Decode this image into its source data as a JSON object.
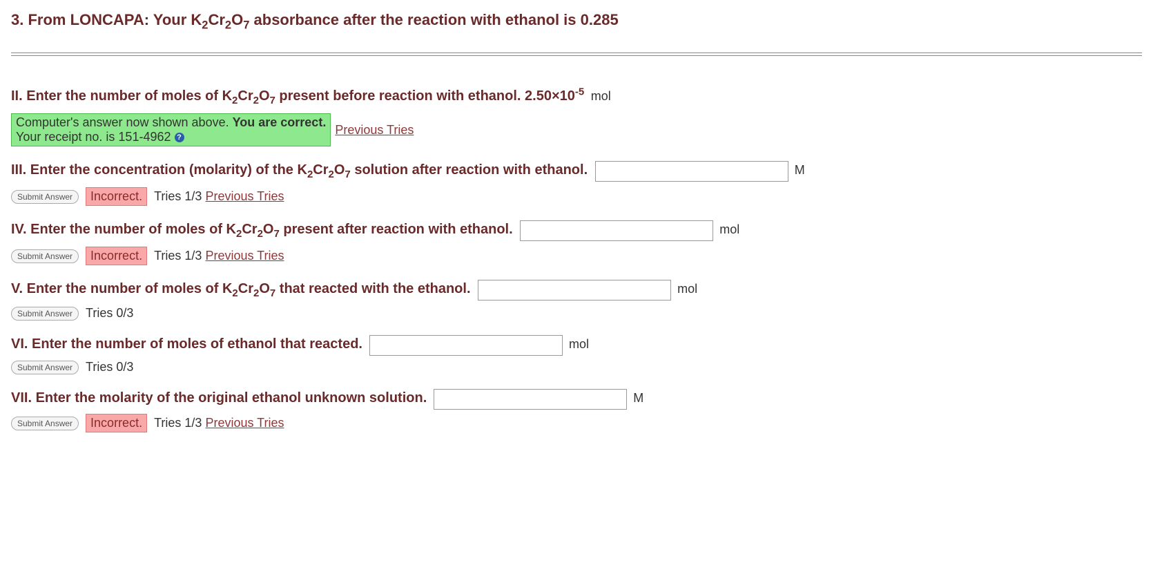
{
  "header": {
    "number": "3.",
    "prefix": "From LONCAPA: Your ",
    "compound_prefix": "K",
    "compound_sub1": "2",
    "compound_mid": "Cr",
    "compound_sub2": "2",
    "compound_mid2": "O",
    "compound_sub3": "7",
    "suffix": " absorbance after the reaction with ethanol is 0.285"
  },
  "q2": {
    "label_prefix": "II. Enter the number of moles of K",
    "label_suffix": " present before reaction with ethanol. ",
    "answer_value": "2.50×10",
    "answer_exp": "-5",
    "unit": "mol",
    "correct_line1": "Computer's answer now shown above. ",
    "correct_bold": "You are correct.",
    "correct_line2": "Your receipt no. is 151-4962 ",
    "prev_tries": "Previous Tries"
  },
  "q3": {
    "label_prefix": "III. Enter the concentration (molarity) of the K",
    "label_suffix": " solution after reaction with ethanol.",
    "unit": "M",
    "submit": "Submit Answer",
    "incorrect": "Incorrect.",
    "tries": "Tries 1/3 ",
    "prev_tries": "Previous Tries"
  },
  "q4": {
    "label_prefix": "IV. Enter the number of moles of K",
    "label_suffix": " present after reaction with ethanol.",
    "unit": "mol",
    "submit": "Submit Answer",
    "incorrect": "Incorrect.",
    "tries": "Tries 1/3 ",
    "prev_tries": "Previous Tries"
  },
  "q5": {
    "label_prefix": "V. Enter the number of moles of K",
    "label_suffix": " that reacted with the ethanol.",
    "unit": "mol",
    "submit": "Submit Answer",
    "tries": "Tries 0/3"
  },
  "q6": {
    "label": "VI. Enter the number of moles of ethanol that reacted.",
    "unit": "mol",
    "submit": "Submit Answer",
    "tries": "Tries 0/3"
  },
  "q7": {
    "label": "VII. Enter the molarity of the original ethanol unknown solution.",
    "unit": "M",
    "submit": "Submit Answer",
    "incorrect": "Incorrect.",
    "tries": "Tries 1/3 ",
    "prev_tries": "Previous Tries"
  },
  "compound": {
    "sub1": "2",
    "mid": "Cr",
    "sub2": "2",
    "mid2": "O",
    "sub3": "7"
  }
}
